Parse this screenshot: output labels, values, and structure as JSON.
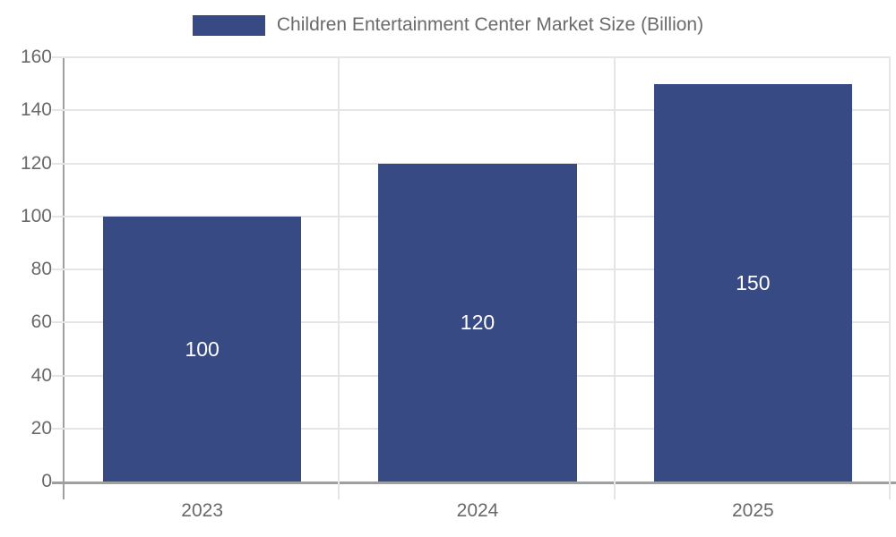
{
  "legend": {
    "label": "Children Entertainment Center Market Size (Billion)"
  },
  "chart_data": {
    "type": "bar",
    "title": "Children Entertainment Center Market Size (Billion)",
    "categories": [
      "2023",
      "2024",
      "2025"
    ],
    "values": [
      100,
      120,
      150
    ],
    "bar_labels": [
      "100",
      "120",
      "150"
    ],
    "xlabel": "",
    "ylabel": "",
    "ylim": [
      0,
      160
    ],
    "yticks": [
      0,
      20,
      40,
      60,
      80,
      100,
      120,
      140,
      160
    ],
    "grid": true,
    "legend_position": "top",
    "colors": {
      "bar": "#374a84",
      "bar_label": "#ffffff",
      "grid": "#e5e5e5",
      "axis": "#9f9f9f",
      "tick_text": "#696969",
      "legend_text": "#6a6a6a"
    }
  }
}
